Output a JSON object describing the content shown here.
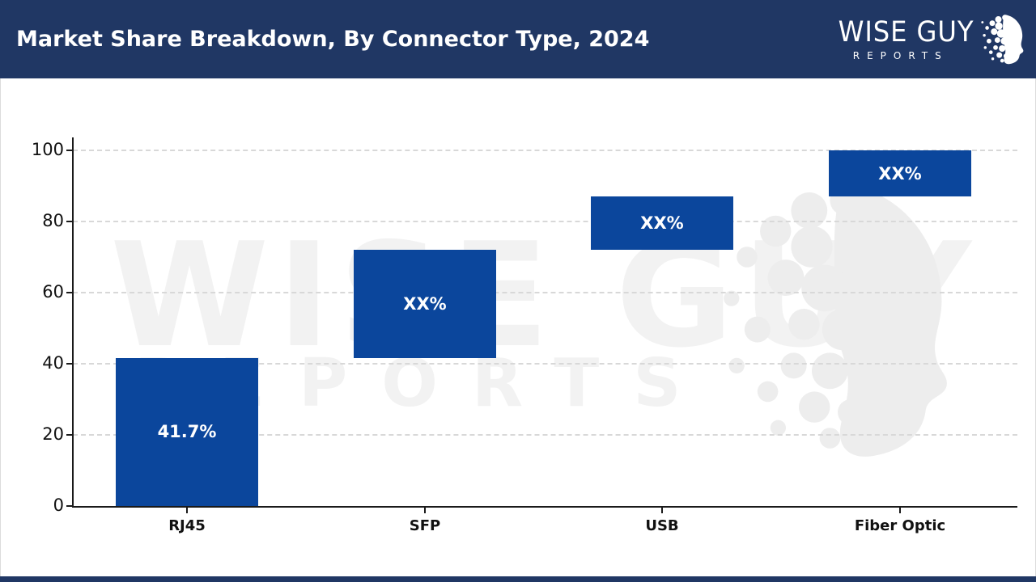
{
  "header": {
    "title": "Market Share Breakdown, By Connector Type, 2024",
    "logo": {
      "line1": "WISE GUY",
      "line2": "REPORTS"
    }
  },
  "watermark": {
    "line1": "WISE GUY",
    "line2": "REPORTS"
  },
  "colors": {
    "header_navy": "#203764",
    "bar_blue": "#0b469c",
    "grid_gray": "#d8d8d8",
    "watermark_gray": "#f2f2f2",
    "bar_label_white": "#ffffff"
  },
  "chart_data": {
    "type": "bar",
    "subtype": "floating-waterfall",
    "title": "Market Share Breakdown, By Connector Type, 2024",
    "categories": [
      "RJ45",
      "SFP",
      "USB",
      "Fiber Optic"
    ],
    "segments": [
      {
        "category": "RJ45",
        "start": 0,
        "end": 41.7,
        "label": "41.7%"
      },
      {
        "category": "SFP",
        "start": 41.7,
        "end": 72,
        "label": "XX%"
      },
      {
        "category": "USB",
        "start": 72,
        "end": 87,
        "label": "XX%"
      },
      {
        "category": "Fiber Optic",
        "start": 87,
        "end": 100,
        "label": "XX%"
      }
    ],
    "xlabel": "",
    "ylabel": "",
    "ylim": [
      0,
      100
    ],
    "yticks": [
      0,
      20,
      40,
      60,
      80,
      100
    ],
    "grid": "horizontal-dashed",
    "legend": "none",
    "bar_color": "#0b469c",
    "bar_label_color": "#ffffff"
  }
}
